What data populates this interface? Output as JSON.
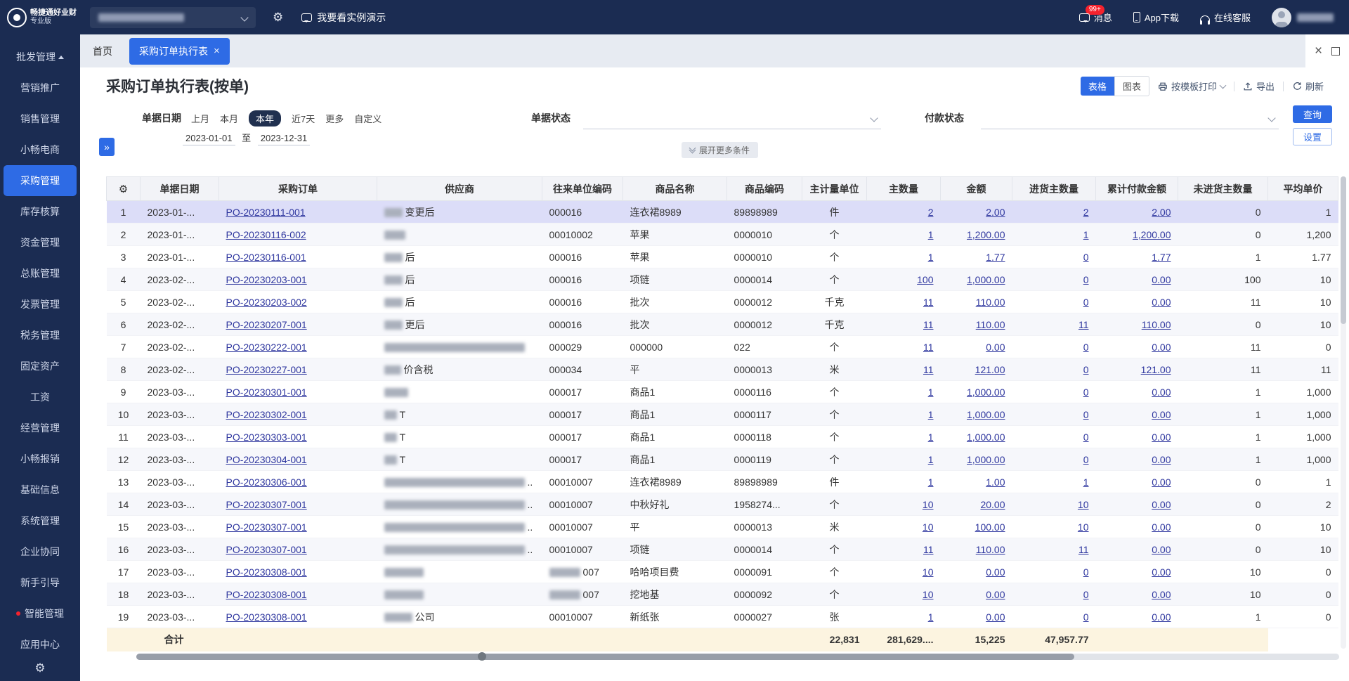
{
  "topbar": {
    "app_name": "畅捷通好业财",
    "edition": "专业版",
    "demo_link": "我要看实例演示",
    "messages_label": "消息",
    "messages_badge": "99+",
    "app_download_label": "App下载",
    "online_service_label": "在线客服"
  },
  "sidebar": {
    "items": [
      {
        "label": "批发管理",
        "arrow": true
      },
      {
        "label": "营销推广"
      },
      {
        "label": "销售管理"
      },
      {
        "label": "小畅电商"
      },
      {
        "label": "采购管理",
        "active": true
      },
      {
        "label": "库存核算"
      },
      {
        "label": "资金管理"
      },
      {
        "label": "总账管理"
      },
      {
        "label": "发票管理"
      },
      {
        "label": "税务管理"
      },
      {
        "label": "固定资产"
      },
      {
        "label": "工资"
      },
      {
        "label": "经营管理"
      },
      {
        "label": "小畅报销"
      },
      {
        "label": "基础信息"
      },
      {
        "label": "系统管理"
      },
      {
        "label": "企业协同"
      },
      {
        "label": "新手引导"
      },
      {
        "label": "智能管理",
        "dot": true
      },
      {
        "label": "应用中心"
      }
    ]
  },
  "tabs": [
    {
      "label": "首页"
    },
    {
      "label": "采购订单执行表",
      "active": true
    }
  ],
  "page": {
    "title": "采购订单执行表(按单)",
    "view_table": "表格",
    "view_chart": "图表",
    "print_label": "按模板打印",
    "export_label": "导出",
    "refresh_label": "刷新"
  },
  "filters": {
    "date_label": "单据日期",
    "date_options": [
      "上月",
      "本月",
      "本年",
      "近7天",
      "更多",
      "自定义"
    ],
    "date_selected_index": 2,
    "date_from": "2023-01-01",
    "to_label": "至",
    "date_to": "2023-12-31",
    "status_label": "单据状态",
    "payment_label": "付款状态",
    "search_button": "查询",
    "settings_button": "设置",
    "expand_label": "展开更多条件"
  },
  "table": {
    "columns": [
      "单据日期",
      "采购订单",
      "供应商",
      "往来单位编码",
      "商品名称",
      "商品编码",
      "主计量单位",
      "主数量",
      "金额",
      "进货主数量",
      "累计付款金额",
      "未进货主数量",
      "平均单价"
    ],
    "rows": [
      {
        "i": 1,
        "sel": true,
        "date": "2023-01-...",
        "po": "PO-20230111-001",
        "sb": 26,
        "st": "变更后",
        "code": "000016",
        "name": "连衣裙8989",
        "pcode": "89898989",
        "unit": "件",
        "qty": "2",
        "amt": "2.00",
        "recv": "2",
        "paid": "2.00",
        "unrecv": "0",
        "price": "1"
      },
      {
        "i": 2,
        "date": "2023-01-...",
        "po": "PO-20230116-002",
        "sb": 30,
        "st": "",
        "code": "00010002",
        "name": "苹果",
        "pcode": "0000010",
        "unit": "个",
        "qty": "1",
        "amt": "1,200.00",
        "recv": "1",
        "paid": "1,200.00",
        "unrecv": "0",
        "price": "1,200"
      },
      {
        "i": 3,
        "date": "2023-01-...",
        "po": "PO-20230116-001",
        "sb": 26,
        "st": "后",
        "code": "000016",
        "name": "苹果",
        "pcode": "0000010",
        "unit": "个",
        "qty": "1",
        "amt": "1.77",
        "recv": "0",
        "paid": "1.77",
        "unrecv": "1",
        "price": "1.77"
      },
      {
        "i": 4,
        "date": "2023-02-...",
        "po": "PO-20230203-001",
        "sb": 26,
        "st": "后",
        "code": "000016",
        "name": "项链",
        "pcode": "0000014",
        "unit": "个",
        "qty": "100",
        "amt": "1,000.00",
        "recv": "0",
        "paid": "0.00",
        "unrecv": "100",
        "price": "10"
      },
      {
        "i": 5,
        "date": "2023-02-...",
        "po": "PO-20230203-002",
        "sb": 26,
        "st": "后",
        "code": "000016",
        "name": "批次",
        "pcode": "0000012",
        "unit": "千克",
        "qty": "11",
        "amt": "110.00",
        "recv": "0",
        "paid": "0.00",
        "unrecv": "11",
        "price": "10"
      },
      {
        "i": 6,
        "date": "2023-02-...",
        "po": "PO-20230207-001",
        "sb": 26,
        "st": "更后",
        "code": "000016",
        "name": "批次",
        "pcode": "0000012",
        "unit": "千克",
        "qty": "11",
        "amt": "110.00",
        "recv": "11",
        "paid": "110.00",
        "unrecv": "0",
        "price": "10"
      },
      {
        "i": 7,
        "date": "2023-02-...",
        "po": "PO-20230222-001",
        "sb": 200,
        "st": "",
        "code": "000029",
        "name": "000000",
        "pcode": "022",
        "unit": "个",
        "qty": "11",
        "amt": "0.00",
        "recv": "0",
        "paid": "0.00",
        "unrecv": "11",
        "price": "0"
      },
      {
        "i": 8,
        "date": "2023-02-...",
        "po": "PO-20230227-001",
        "sb": 24,
        "st": "价含税",
        "code": "000034",
        "name": "平",
        "pcode": "0000013",
        "unit": "米",
        "qty": "11",
        "amt": "121.00",
        "recv": "0",
        "paid": "121.00",
        "unrecv": "11",
        "price": "11"
      },
      {
        "i": 9,
        "date": "2023-03-...",
        "po": "PO-20230301-001",
        "sb": 34,
        "st": "",
        "code": "000017",
        "name": "商品1",
        "pcode": "0000116",
        "unit": "个",
        "qty": "1",
        "amt": "1,000.00",
        "recv": "0",
        "paid": "0.00",
        "unrecv": "1",
        "price": "1,000"
      },
      {
        "i": 10,
        "date": "2023-03-...",
        "po": "PO-20230302-001",
        "sb": 18,
        "st": "T",
        "code": "000017",
        "name": "商品1",
        "pcode": "0000117",
        "unit": "个",
        "qty": "1",
        "amt": "1,000.00",
        "recv": "0",
        "paid": "0.00",
        "unrecv": "1",
        "price": "1,000"
      },
      {
        "i": 11,
        "date": "2023-03-...",
        "po": "PO-20230303-001",
        "sb": 18,
        "st": "T",
        "code": "000017",
        "name": "商品1",
        "pcode": "0000118",
        "unit": "个",
        "qty": "1",
        "amt": "1,000.00",
        "recv": "0",
        "paid": "0.00",
        "unrecv": "1",
        "price": "1,000"
      },
      {
        "i": 12,
        "date": "2023-03-...",
        "po": "PO-20230304-001",
        "sb": 18,
        "st": "T",
        "code": "000017",
        "name": "商品1",
        "pcode": "0000119",
        "unit": "个",
        "qty": "1",
        "amt": "1,000.00",
        "recv": "0",
        "paid": "0.00",
        "unrecv": "1",
        "price": "1,000"
      },
      {
        "i": 13,
        "date": "2023-03-...",
        "po": "PO-20230306-001",
        "sb": 200,
        "st": "..",
        "code": "00010007",
        "name": "连衣裙8989",
        "pcode": "89898989",
        "unit": "件",
        "qty": "1",
        "amt": "1.00",
        "recv": "1",
        "paid": "0.00",
        "unrecv": "0",
        "price": "1"
      },
      {
        "i": 14,
        "date": "2023-03-...",
        "po": "PO-20230307-001",
        "sb": 200,
        "st": "..",
        "code": "00010007",
        "name": "中秋好礼",
        "pcode": "1958274...",
        "unit": "个",
        "qty": "10",
        "amt": "20.00",
        "recv": "10",
        "paid": "0.00",
        "unrecv": "0",
        "price": "2"
      },
      {
        "i": 15,
        "date": "2023-03-...",
        "po": "PO-20230307-001",
        "sb": 200,
        "st": "..",
        "code": "00010007",
        "name": "平",
        "pcode": "0000013",
        "unit": "米",
        "qty": "10",
        "amt": "100.00",
        "recv": "10",
        "paid": "0.00",
        "unrecv": "0",
        "price": "10"
      },
      {
        "i": 16,
        "date": "2023-03-...",
        "po": "PO-20230307-001",
        "sb": 200,
        "st": "..",
        "code": "00010007",
        "name": "项链",
        "pcode": "0000014",
        "unit": "个",
        "qty": "11",
        "amt": "110.00",
        "recv": "11",
        "paid": "0.00",
        "unrecv": "0",
        "price": "10"
      },
      {
        "i": 17,
        "date": "2023-03-...",
        "po": "PO-20230308-001",
        "sb": 56,
        "st": "",
        "cb": 44,
        "code": "007",
        "name": "哈哈项目费",
        "pcode": "0000091",
        "unit": "个",
        "qty": "10",
        "amt": "0.00",
        "recv": "0",
        "paid": "0.00",
        "unrecv": "10",
        "price": "0"
      },
      {
        "i": 18,
        "date": "2023-03-...",
        "po": "PO-20230308-001",
        "sb": 56,
        "st": "",
        "cb": 44,
        "code": "007",
        "name": "挖地基",
        "pcode": "0000092",
        "unit": "个",
        "qty": "10",
        "amt": "0.00",
        "recv": "0",
        "paid": "0.00",
        "unrecv": "10",
        "price": "0"
      },
      {
        "i": 19,
        "date": "2023-03-...",
        "po": "PO-20230308-001",
        "sb": 40,
        "st": "公司",
        "code": "00010007",
        "name": "新纸张",
        "pcode": "0000027",
        "unit": "张",
        "qty": "1",
        "amt": "0.00",
        "recv": "0",
        "paid": "0.00",
        "unrecv": "1",
        "price": "0"
      }
    ],
    "footer": {
      "label": "合计",
      "qty": "22,831",
      "amt": "281,629....",
      "recv": "15,225",
      "paid": "47,957.77"
    }
  }
}
